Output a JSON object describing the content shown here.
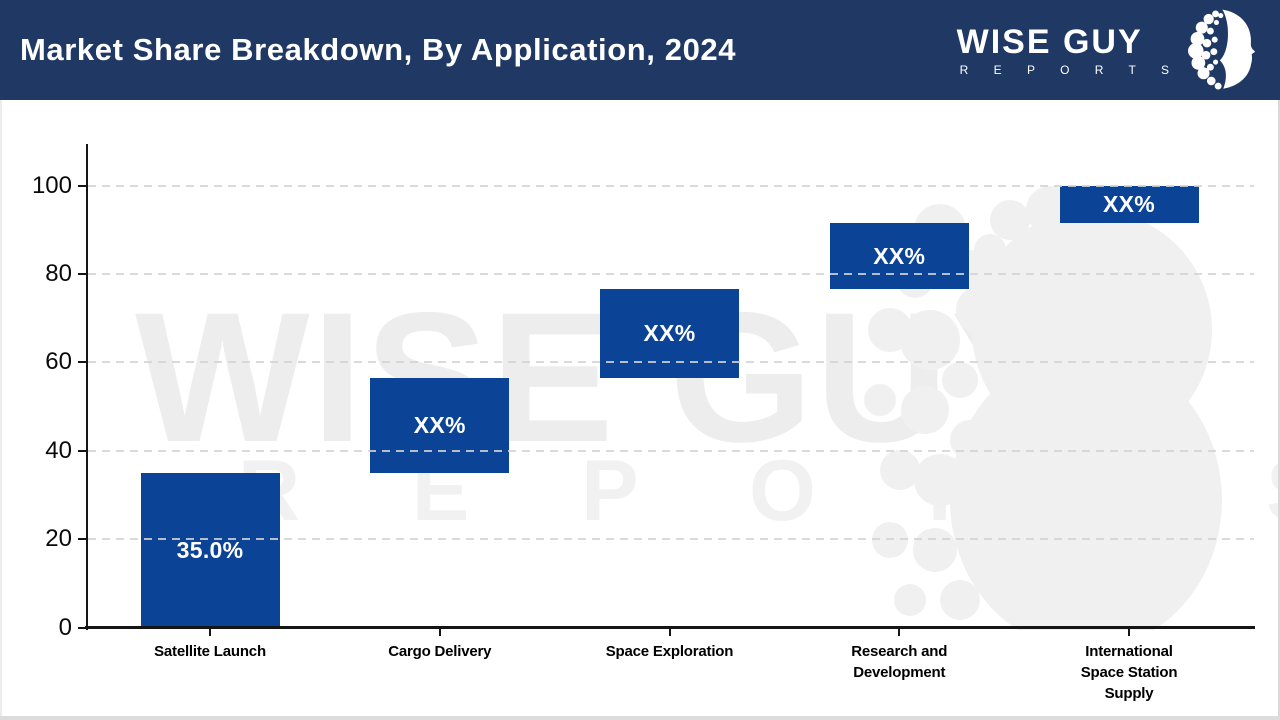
{
  "header": {
    "title": "Market Share Breakdown, By Application, 2024",
    "logo": {
      "line1": "WISE GUY",
      "line2": "R E P O R T S"
    }
  },
  "watermark": {
    "line1": "WISE GUY",
    "line2": "R E P O R T S"
  },
  "colors": {
    "header_bg": "#1f3864",
    "bar": "#0b4397",
    "bar_label_text": "#ffffff",
    "gridline": "#d3d3d3",
    "axis": "#151515",
    "title_text": "#ffffff",
    "watermark": "#ededed"
  },
  "chart_data": {
    "type": "bar",
    "variant": "waterfall",
    "title": "Market Share Breakdown, By Application, 2024",
    "categories": [
      "Satellite Launch",
      "Cargo Delivery",
      "Space Exploration",
      "Research and\nDevelopment",
      "International\nSpace Station\nSupply"
    ],
    "segments": [
      {
        "category": "Satellite Launch",
        "bar_label": "35.0%",
        "start": 0,
        "end": 35,
        "value": 35.0
      },
      {
        "category": "Cargo Delivery",
        "bar_label": "XX%",
        "start": 35,
        "end": 56.5,
        "value": 21.5
      },
      {
        "category": "Space Exploration",
        "bar_label": "XX%",
        "start": 56.5,
        "end": 76.5,
        "value": 20.0
      },
      {
        "category": "Research and\nDevelopment",
        "bar_label": "XX%",
        "start": 76.5,
        "end": 91.5,
        "value": 15.0
      },
      {
        "category": "International\nSpace Station\nSupply",
        "bar_label": "XX%",
        "start": 91.5,
        "end": 100,
        "value": 8.5
      }
    ],
    "xlabel": "",
    "ylabel": "",
    "yticks": [
      0,
      20,
      40,
      60,
      80,
      100
    ],
    "ylim": [
      0,
      106
    ],
    "grid": "horizontal-dashed",
    "legend": "none",
    "bar_color": "#0b4397"
  }
}
